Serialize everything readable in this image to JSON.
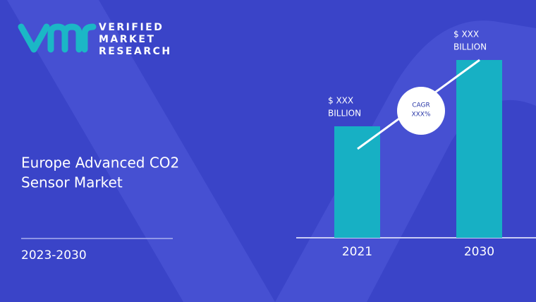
{
  "logo": {
    "lines": [
      "VERIFIED",
      "MARKET",
      "RESEARCH"
    ]
  },
  "title_lines": [
    "Europe Advanced CO2",
    "Sensor Market"
  ],
  "period": "2023-2030",
  "chart_data": {
    "type": "bar",
    "categories": [
      "2021",
      "2030"
    ],
    "values": [
      158,
      252
    ],
    "color": "#17b0c4",
    "bar_labels": [
      [
        "$ XXX",
        "BILLION"
      ],
      [
        "$ XXX",
        "BILLION"
      ]
    ],
    "cagr_label": [
      "CAGR",
      "XXX%"
    ]
  }
}
